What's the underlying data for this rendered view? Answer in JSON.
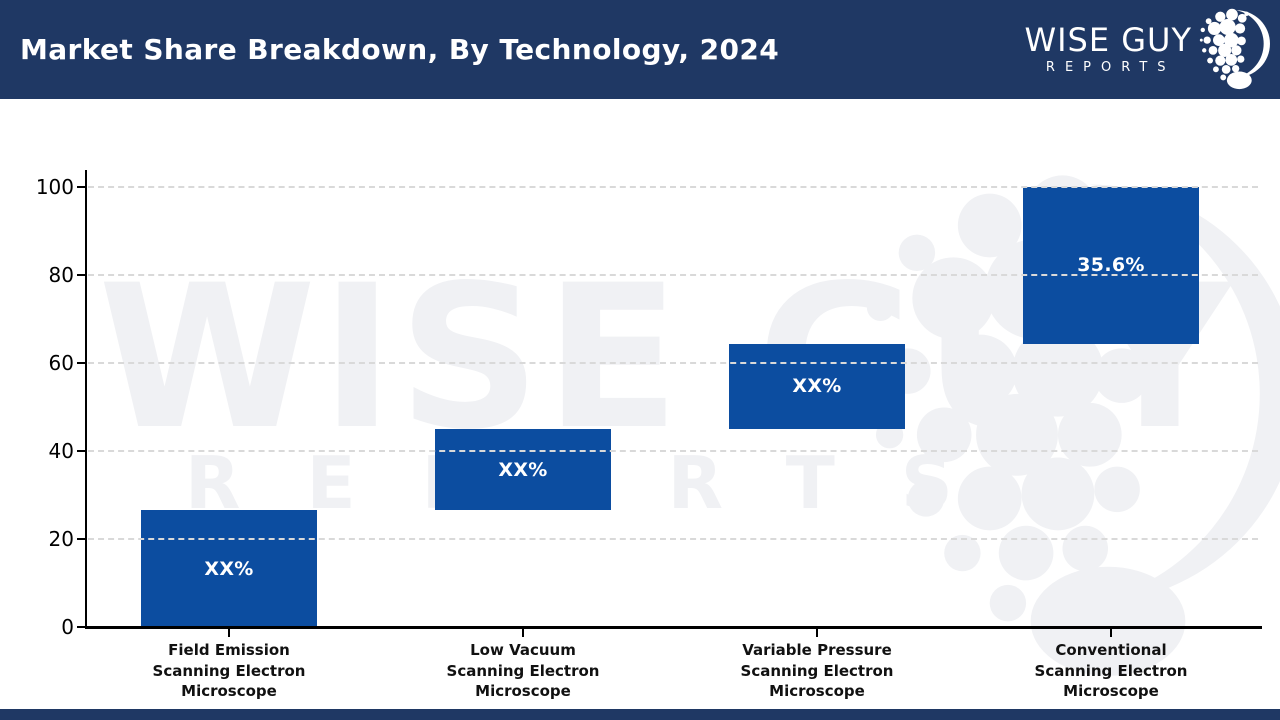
{
  "header": {
    "title": "Market Share Breakdown, By Technology, 2024",
    "logo": {
      "wordmark": "WISE GUY",
      "tagline": "REPORTS"
    }
  },
  "watermark": {
    "wordmark": "WISE GUY",
    "tagline": "REPORTS"
  },
  "colors": {
    "header_bg": "#1f3864",
    "footer_bg": "#1f3864",
    "bar": "#0c4da0",
    "gridline": "#d9d9d9",
    "axis": "#000000",
    "bar_label": "#ffffff",
    "watermark": "#f0f1f4"
  },
  "chart_data": {
    "type": "bar",
    "subtype": "floating-waterfall",
    "title": "Market Share Breakdown, By Technology, 2024",
    "xlabel": "",
    "ylabel": "",
    "ylim": [
      0,
      100
    ],
    "yticks": [
      0,
      20,
      40,
      60,
      80,
      100
    ],
    "grid": true,
    "grid_style": "dashed",
    "legend": "none",
    "bar_color": "#0c4da0",
    "categories": [
      "Field Emission Scanning Electron Microscope",
      "Low Vacuum Scanning Electron Microscope",
      "Variable Pressure Scanning Electron Microscope",
      "Conventional Scanning Electron Microscope"
    ],
    "category_lines": [
      [
        "Field Emission",
        "Scanning Electron",
        "Microscope"
      ],
      [
        "Low Vacuum",
        "Scanning Electron",
        "Microscope"
      ],
      [
        "Variable Pressure",
        "Scanning Electron",
        "Microscope"
      ],
      [
        "Conventional",
        "Scanning Electron",
        "Microscope"
      ]
    ],
    "bars": [
      {
        "label": "XX%",
        "start": 0,
        "end": 26.5
      },
      {
        "label": "XX%",
        "start": 26.5,
        "end": 45
      },
      {
        "label": "XX%",
        "start": 45,
        "end": 64.4
      },
      {
        "label": "35.6%",
        "start": 64.4,
        "end": 100
      }
    ]
  }
}
